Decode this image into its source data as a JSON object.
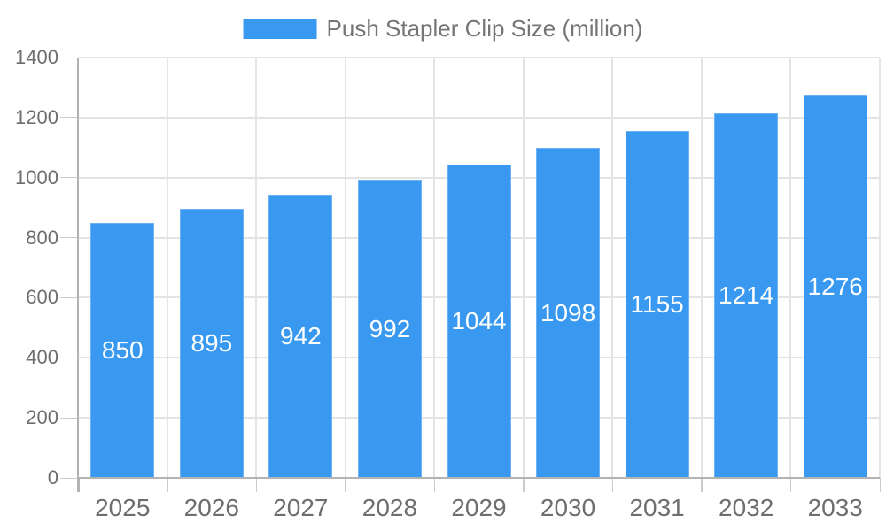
{
  "chart_data": {
    "type": "bar",
    "title": "",
    "categories": [
      "2025",
      "2026",
      "2027",
      "2028",
      "2029",
      "2030",
      "2031",
      "2032",
      "2033"
    ],
    "series": [
      {
        "name": "Push Stapler Clip Size (million)",
        "values": [
          850,
          895,
          942,
          992,
          1044,
          1098,
          1155,
          1214,
          1276
        ]
      }
    ],
    "xlabel": "",
    "ylabel": "",
    "ylim": [
      0,
      1400
    ],
    "ytick_interval": 200,
    "yticks": [
      0,
      200,
      400,
      600,
      800,
      1000,
      1200,
      1400
    ],
    "grid": "on",
    "legend_position": "top",
    "value_labels": "inside-center",
    "colors": {
      "bar": "#3999F0",
      "bar_edge": "#6FB2F3",
      "bar_value_label": "#FFFFFF",
      "axis_text": "#6E6E6E",
      "legend_text": "#757575",
      "gridline": "#E4E4E4",
      "axis_line": "#B3B3B3",
      "tick": "#CCCCCC",
      "background": "#FFFFFF"
    }
  }
}
